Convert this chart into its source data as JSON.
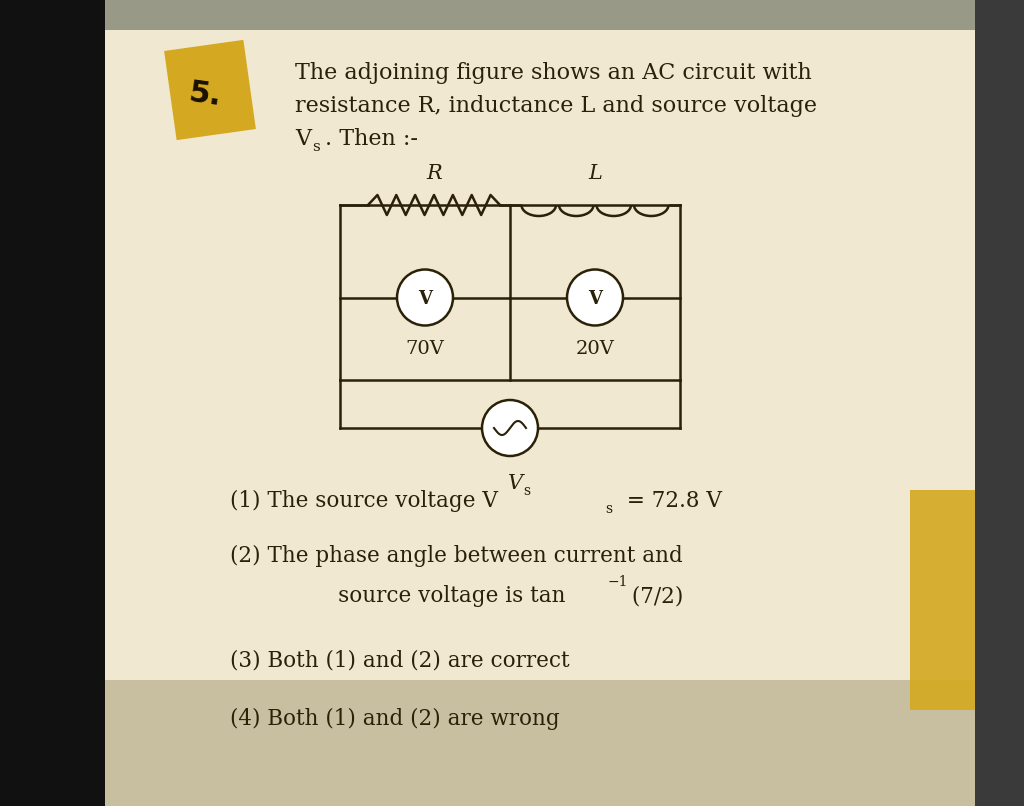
{
  "bg_dark": "#2a2a2a",
  "bg_left_dark": "#1a1a1a",
  "page_color": "#f0e8d0",
  "page_shadow": "#d8cfb0",
  "yellow_color": "#d4a820",
  "text_color": "#2a2108",
  "circuit_color": "#2a2108",
  "q_number": "5.",
  "q_line1": "The adjoining figure shows an AC circuit with",
  "q_line2": "resistance R, inductance L and source voltage",
  "q_line3": "V",
  "q_line3s": "s",
  "q_line3e": ". Then :-",
  "R_label": "R",
  "L_label": "L",
  "V1_label": "70V",
  "V2_label": "20V",
  "Vs_label": "V",
  "Vs_sub": "s",
  "opt1a": "(1) The source voltage V",
  "opt1s": "s",
  "opt1b": " = 72.8 V",
  "opt2a": "(2) The phase angle between current and",
  "opt2b": "       source voltage is tan",
  "opt2sup": "−1",
  "opt2c": " (7/2)",
  "opt3": "(3) Both (1) and (2) are correct",
  "opt4": "(4) Both (1) and (2) are wrong",
  "fs_q": 16,
  "fs_opt": 15.5,
  "fs_label": 15
}
